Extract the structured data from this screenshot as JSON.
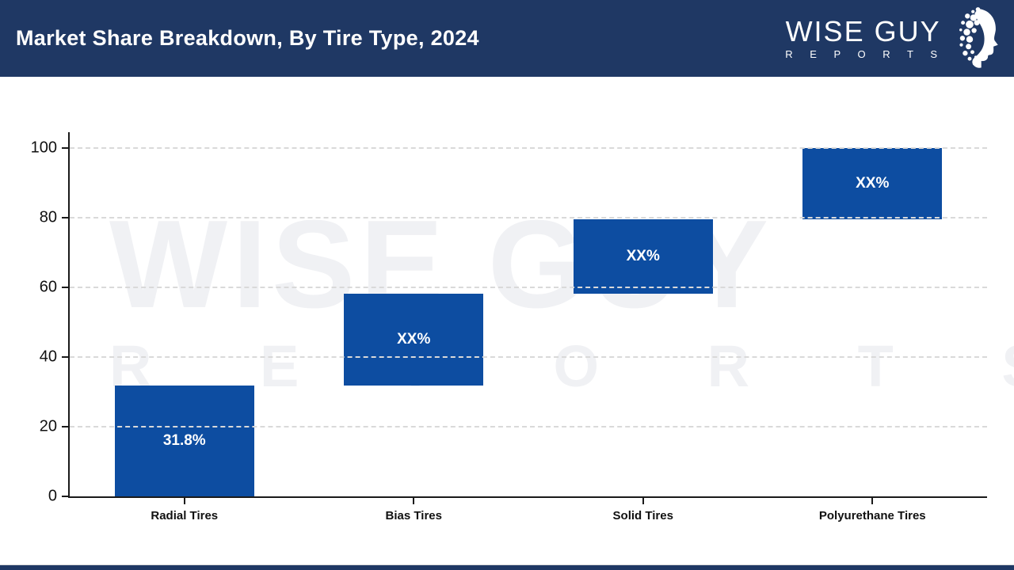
{
  "header": {
    "title": "Market Share Breakdown, By Tire Type, 2024",
    "logo": {
      "wordmark": "WISE GUY",
      "sub": "R E P O R T S"
    }
  },
  "watermark": {
    "wordmark": "WISE GUY",
    "sub": "R E P O R T S"
  },
  "chart_data": {
    "type": "bar",
    "subtype": "waterfall",
    "title": "Market Share Breakdown, By Tire Type, 2024",
    "categories": [
      "Radial Tires",
      "Bias Tires",
      "Solid Tires",
      "Polyurethane Tires"
    ],
    "segments": [
      {
        "category": "Radial Tires",
        "start": 0,
        "end": 31.8,
        "label": "31.8%"
      },
      {
        "category": "Bias Tires",
        "start": 31.8,
        "end": 58.2,
        "label": "XX%"
      },
      {
        "category": "Solid Tires",
        "start": 58.2,
        "end": 79.6,
        "label": "XX%"
      },
      {
        "category": "Polyurethane Tires",
        "start": 79.6,
        "end": 100,
        "label": "XX%"
      }
    ],
    "ylim": [
      0,
      100
    ],
    "yticks": [
      0,
      20,
      40,
      60,
      80,
      100
    ],
    "xlabel": "",
    "ylabel": "",
    "grid": "horizontal-dashed",
    "legend": "none"
  },
  "colors": {
    "header_bg": "#1f3864",
    "bar": "#0d4da1",
    "bar_label": "#ffffff",
    "gridline": "#d9d9d9",
    "axis": "#1a1a1a",
    "watermark": "#f0f1f4",
    "footer_bar": "#1f3864"
  }
}
